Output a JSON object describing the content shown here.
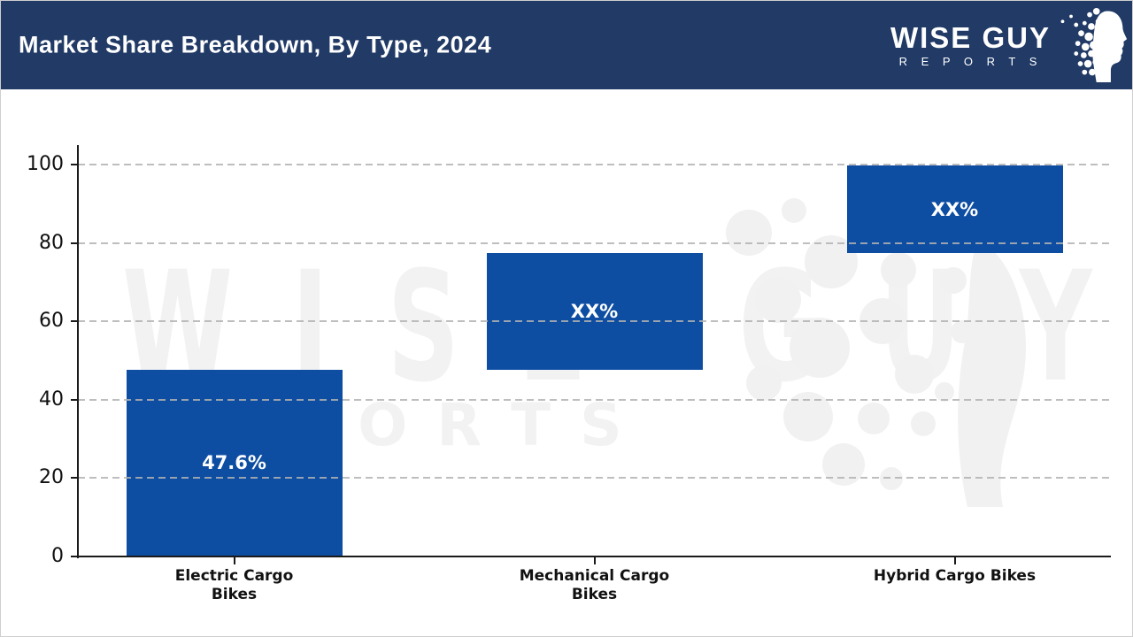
{
  "header": {
    "title": "Market Share Breakdown, By Type, 2024",
    "logo": {
      "brand_line1": "WISE GUY",
      "brand_line2": "R E P O R T S"
    }
  },
  "watermark": {
    "line1": "WISE GUY",
    "line2": "R E P O R T S"
  },
  "chart_data": {
    "type": "bar",
    "subtype": "waterfall",
    "title": "Market Share Breakdown, By Type, 2024",
    "xlabel": "",
    "ylabel": "",
    "ylim": [
      0,
      105
    ],
    "yticks": [
      0,
      20,
      40,
      60,
      80,
      100
    ],
    "grid": "horizontal dashed, drawn over bars",
    "legend": "none",
    "categories": [
      [
        "Electric Cargo",
        "Bikes"
      ],
      [
        "Mechanical Cargo",
        "Bikes"
      ],
      [
        "Hybrid Cargo Bikes"
      ]
    ],
    "segments": [
      {
        "category": "Electric Cargo Bikes",
        "start": 0,
        "end": 47.6,
        "label": "47.6%"
      },
      {
        "category": "Mechanical Cargo Bikes",
        "start": 47.6,
        "end": 77.4,
        "label": "XX%"
      },
      {
        "category": "Hybrid Cargo Bikes",
        "start": 77.4,
        "end": 99.7,
        "label": "XX%"
      }
    ]
  },
  "colors": {
    "header_bg": "#213a66",
    "bar": "#0d4da2",
    "bar_label": "#ffffff",
    "axis": "#1a1a1a",
    "grid": "#b2b2b2",
    "watermark": "#f2f2f2",
    "page_bg": "#ffffff",
    "border": "#cfcfcf"
  }
}
